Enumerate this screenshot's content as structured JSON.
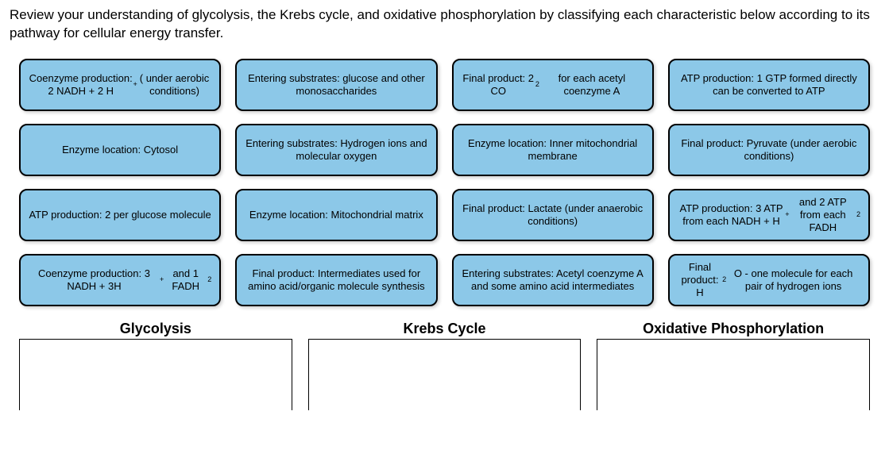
{
  "instructions": "Review your understanding of glycolysis, the Krebs cycle, and oxidative phosphorylation by classifying each characteristic below according to its pathway for cellular energy transfer.",
  "card_color": "#8cc8e8",
  "card_border": "#000000",
  "card_radius": "10px",
  "cards": [
    {
      "html": "Coenzyme production: 2 NADH + 2 H<span class='sup'>+</span> ( under aerobic conditions)"
    },
    {
      "html": "Entering substrates: glucose and other monosaccharides"
    },
    {
      "html": "Final product: 2 CO<span class='sub'>2</span> for each acetyl coenzyme A"
    },
    {
      "html": "ATP production: 1 GTP formed directly can be converted to ATP"
    },
    {
      "html": "Enzyme location: Cytosol"
    },
    {
      "html": "Entering substrates: Hydrogen ions and molecular oxygen"
    },
    {
      "html": "Enzyme location: Inner mitochondrial membrane"
    },
    {
      "html": "Final product: Pyruvate (under aerobic conditions)"
    },
    {
      "html": "ATP production: 2 per glucose molecule"
    },
    {
      "html": "Enzyme location: Mitochondrial matrix"
    },
    {
      "html": "Final product: Lactate (under anaerobic conditions)"
    },
    {
      "html": "ATP production: 3 ATP from each NADH + H<span class='sup'>+</span> and 2 ATP from each FADH<span class='sub'>2</span>"
    },
    {
      "html": "Coenzyme production: 3 NADH + 3H<span class='sup'>+</span> and 1 FADH<span class='sub'>2</span>"
    },
    {
      "html": "Final product: Intermediates used for amino acid/organic molecule synthesis"
    },
    {
      "html": "Entering substrates: Acetyl coenzyme A and some amino acid intermediates"
    },
    {
      "html": "Final product: H<span class='sub'>2</span>O - one molecule for each pair of hydrogen ions"
    }
  ],
  "drop_zones": [
    {
      "title": "Glycolysis"
    },
    {
      "title": "Krebs Cycle"
    },
    {
      "title": "Oxidative Phosphorylation"
    }
  ]
}
